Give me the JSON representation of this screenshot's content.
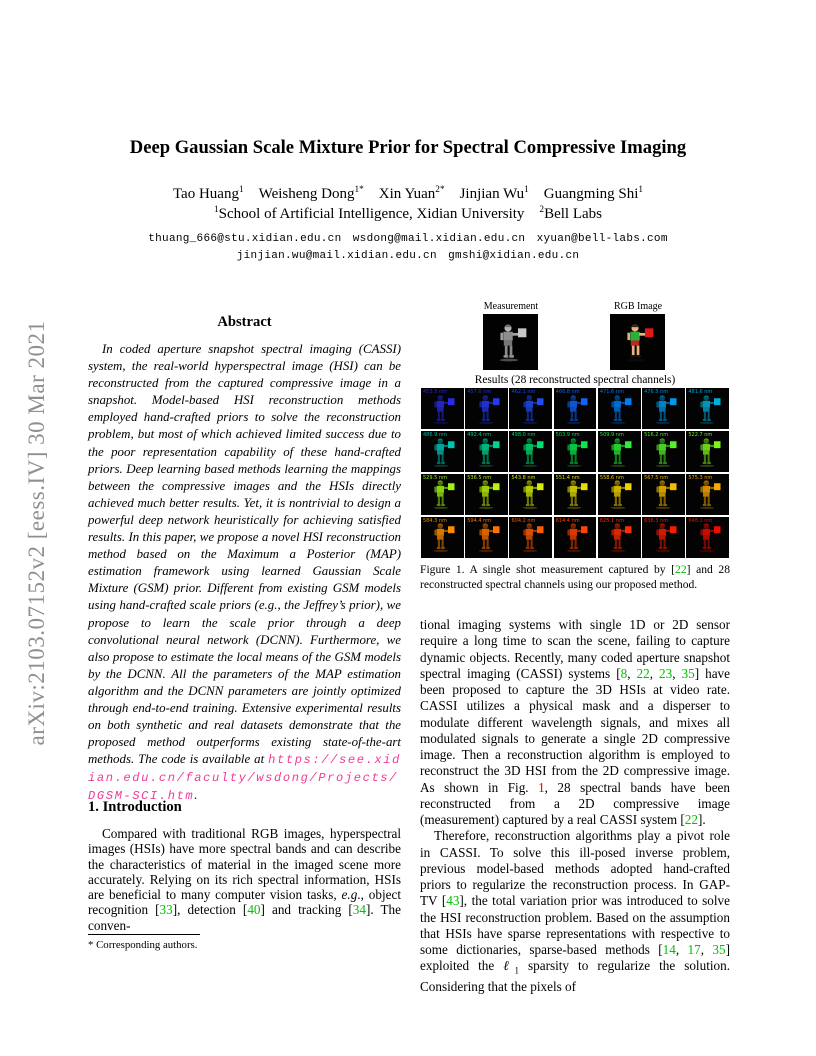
{
  "arxiv_banner": "arXiv:2103.07152v2  [eess.IV]  30 Mar 2021",
  "header": {
    "title": "Deep Gaussian Scale Mixture Prior for Spectral Compressive Imaging",
    "authors_rich": [
      {
        "t": "Tao Huang"
      },
      {
        "t": "1",
        "c": "sup"
      },
      {
        "t": " "
      },
      {
        "t": "Weisheng Dong"
      },
      {
        "t": "1*",
        "c": "sup"
      },
      {
        "t": " "
      },
      {
        "t": "Xin Yuan"
      },
      {
        "t": "2*",
        "c": "sup"
      },
      {
        "t": " "
      },
      {
        "t": "Jinjian Wu"
      },
      {
        "t": "1",
        "c": "sup"
      },
      {
        "t": " "
      },
      {
        "t": "Guangming Shi"
      },
      {
        "t": "1",
        "c": "sup"
      }
    ],
    "affiliations_rich": [
      {
        "t": "1",
        "c": "sup"
      },
      {
        "t": "School of Artificial Intelligence, Xidian University"
      },
      {
        "t": " "
      },
      {
        "t": "2",
        "c": "sup"
      },
      {
        "t": "Bell Labs"
      }
    ],
    "emails_line1": "thuang_666@stu.xidian.edu.cn wsdong@mail.xidian.edu.cn xyuan@bell-labs.com",
    "emails_line2": "jinjian.wu@mail.xidian.edu.cn gmshi@xidian.edu.cn"
  },
  "abstract": {
    "heading": "Abstract",
    "body_rich": [
      {
        "t": "In coded aperture snapshot spectral imaging (CASSI) system, the real-world hyperspectral image (HSI) can be reconstructed from the captured compressive image in a snapshot. Model-based HSI reconstruction methods employed hand-crafted priors to solve the reconstruction problem, but most of which achieved limited success due to the poor representation capability of these hand-crafted priors. Deep learning based methods learning the mappings between the compressive images and the HSIs directly achieved much better results. Yet, it is nontrivial to design a powerful deep network heuristically for achieving satisfied results. In this paper, we propose a novel HSI reconstruction method based on the Maximum a Posterior (MAP) estimation framework using learned Gaussian Scale Mixture (GSM) prior. Different from existing GSM models using hand-crafted scale priors (e.g., the Jeffrey’s prior), we propose to learn the scale prior through a deep convolutional neural network (DCNN). Furthermore, we also propose to estimate the local means of the GSM models by the DCNN. All the parameters of the MAP estimation algorithm and the DCNN parameters are jointly optimized through end-to-end training. Extensive experimental results on both synthetic and real datasets demonstrate that the proposed method outperforms existing state-of-the-art methods. The code is available at "
      },
      {
        "t": "https://see.xidian.edu.cn/faculty/wsdong/Projects/DGSM-SCI.htm",
        "c": "url"
      },
      {
        "t": "."
      }
    ]
  },
  "introduction": {
    "heading": "1. Introduction",
    "para1_rich": [
      {
        "t": "Compared with traditional RGB images, hyperspectral images (HSIs) have more spectral bands and can describe the characteristics of material in the imaged scene more accurately. Relying on its rich spectral information, HSIs are beneficial to many computer vision tasks, "
      },
      {
        "t": "e.g",
        "c": "it"
      },
      {
        "t": "., object recognition ["
      },
      {
        "t": "33",
        "c": "cite"
      },
      {
        "t": "], detection ["
      },
      {
        "t": "40",
        "c": "cite"
      },
      {
        "t": "] and tracking ["
      },
      {
        "t": "34",
        "c": "cite"
      },
      {
        "t": "]. The conven-"
      }
    ],
    "footnote": "* Corresponding authors."
  },
  "figure1": {
    "measurement_label": "Measurement",
    "rgb_label": "RGB Image",
    "results_title": "Results (28 reconstructed spectral channels)",
    "caption_rich": [
      {
        "t": "Figure 1. A single shot measurement captured by ["
      },
      {
        "t": "22",
        "c": "cite"
      },
      {
        "t": "] and 28 reconstructed spectral channels using our proposed method."
      }
    ],
    "measurement_palette": {
      "hair": "#6f6f6f",
      "head": "#b2b2b2",
      "body": "#8d8d8d",
      "arm": "#a2a2a2",
      "block": "#c8c8c8",
      "shorts": "#767676",
      "legs": "#8a8a8a",
      "feet": "#989898"
    },
    "rgb_palette": {
      "hair": "#31210f",
      "head": "#e8b37e",
      "body": "#2fae3a",
      "arm": "#e8b37e",
      "block": "#e01818",
      "shorts": "#c22525",
      "legs": "#e8b37e",
      "feet": "#141414"
    },
    "channels": [
      {
        "label": "453.3 nm",
        "color": "#2a2ae8"
      },
      {
        "label": "457.6 nm",
        "color": "#2438ee"
      },
      {
        "label": "462.1 nm",
        "color": "#1d4cf2"
      },
      {
        "label": "466.8 nm",
        "color": "#1063f5"
      },
      {
        "label": "471.6 nm",
        "color": "#007df2"
      },
      {
        "label": "476.5 nm",
        "color": "#0098e8"
      },
      {
        "label": "481.6 nm",
        "color": "#00aed6"
      },
      {
        "label": "486.9 nm",
        "color": "#00c2b4"
      },
      {
        "label": "492.4 nm",
        "color": "#00d292"
      },
      {
        "label": "498.0 nm",
        "color": "#00de6e"
      },
      {
        "label": "503.9 nm",
        "color": "#0ce74e"
      },
      {
        "label": "509.9 nm",
        "color": "#2eee38"
      },
      {
        "label": "516.2 nm",
        "color": "#55f22a"
      },
      {
        "label": "522.7 nm",
        "color": "#7df41e"
      },
      {
        "label": "529.5 nm",
        "color": "#9ef414"
      },
      {
        "label": "536.5 nm",
        "color": "#bcf20c"
      },
      {
        "label": "543.8 nm",
        "color": "#d4ec06"
      },
      {
        "label": "551.4 nm",
        "color": "#e6e000"
      },
      {
        "label": "558.6 nm",
        "color": "#f0d000"
      },
      {
        "label": "567.5 nm",
        "color": "#f6bc00"
      },
      {
        "label": "575.3 nm",
        "color": "#faa600"
      },
      {
        "label": "584.3 nm",
        "color": "#fc8d00"
      },
      {
        "label": "594.4 nm",
        "color": "#ff7300"
      },
      {
        "label": "604.2 nm",
        "color": "#ff5a00"
      },
      {
        "label": "614.4 nm",
        "color": "#ff4300"
      },
      {
        "label": "625.1 nm",
        "color": "#fc2e00"
      },
      {
        "label": "636.3 nm",
        "color": "#f61c00"
      },
      {
        "label": "648.1 nm",
        "color": "#ea0e00"
      }
    ]
  },
  "right_column": {
    "para1_rich": [
      {
        "t": "tional imaging systems with single 1D or 2D sensor require a long time to scan the scene, failing to capture dynamic objects.  Recently, many coded aperture snapshot spectral imaging (CASSI) systems ["
      },
      {
        "t": "8",
        "c": "cite"
      },
      {
        "t": ", "
      },
      {
        "t": "22",
        "c": "cite"
      },
      {
        "t": ", "
      },
      {
        "t": "23",
        "c": "cite"
      },
      {
        "t": ", "
      },
      {
        "t": "35",
        "c": "cite"
      },
      {
        "t": "] have been proposed to capture the 3D HSIs at video rate. CASSI utilizes a physical mask and a disperser to modulate different wavelength signals, and mixes all modulated signals to generate a single 2D compressive image.  Then a reconstruction algorithm is employed to reconstruct the 3D HSI from the 2D compressive image.  As shown in Fig. "
      },
      {
        "t": "1",
        "c": "figref"
      },
      {
        "t": ", 28 spectral bands have been reconstructed from a 2D compressive image (measurement) captured by a real CASSI system ["
      },
      {
        "t": "22",
        "c": "cite"
      },
      {
        "t": "]."
      }
    ],
    "para2_rich": [
      {
        "t": "Therefore, reconstruction algorithms play a pivot role in CASSI. To solve this ill-posed inverse problem, previous model-based methods adopted hand-crafted priors to regularize the reconstruction process.  In GAP-TV ["
      },
      {
        "t": "43",
        "c": "cite"
      },
      {
        "t": "], the total variation prior was introduced to solve the HSI reconstruction problem. Based on the assumption that HSIs have sparse representations with respective to some dictionaries, sparse-based methods ["
      },
      {
        "t": "14",
        "c": "cite"
      },
      {
        "t": ", "
      },
      {
        "t": "17",
        "c": "cite"
      },
      {
        "t": ", "
      },
      {
        "t": "35",
        "c": "cite"
      },
      {
        "t": "] exploited the "
      },
      {
        "t": "ℓ",
        "c": "it"
      },
      {
        "t": "1",
        "c": "sub"
      },
      {
        "t": " sparsity to regularize the solution.  Considering that the pixels of"
      }
    ]
  }
}
